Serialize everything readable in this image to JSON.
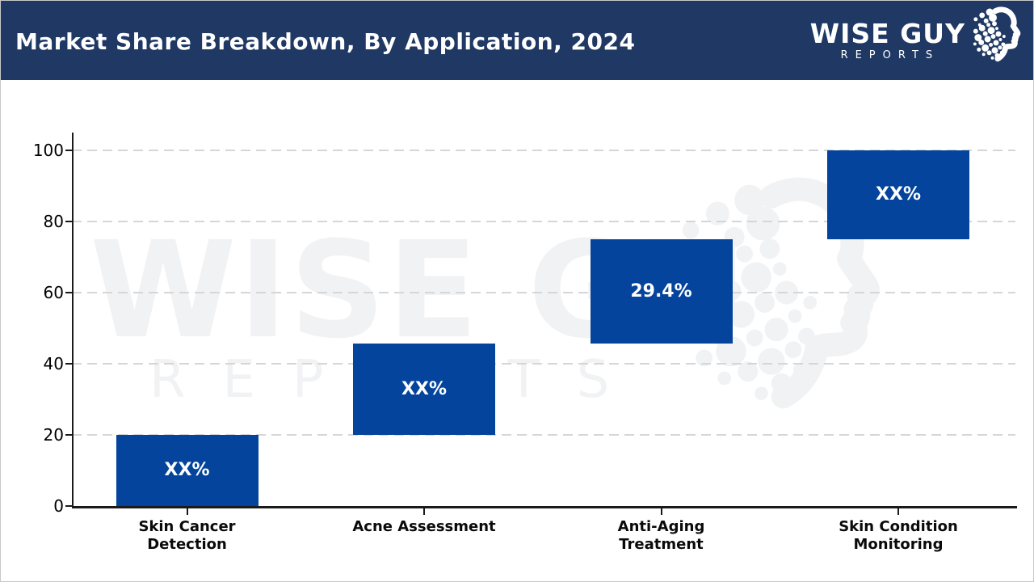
{
  "header": {
    "title": "Market Share Breakdown, By Application, 2024",
    "bg_color": "#1f3864",
    "logo": {
      "name": "WISE GUY",
      "sub": "REPORTS"
    }
  },
  "watermark": {
    "text": "WISE GU",
    "sub": "REPORTS"
  },
  "chart_data": {
    "type": "bar",
    "variant": "waterfall",
    "title": "Market Share Breakdown, By Application, 2024",
    "categories": [
      [
        "Skin Cancer",
        "Detection"
      ],
      [
        "Acne Assessment"
      ],
      [
        "Anti-Aging",
        "Treatment"
      ],
      [
        "Skin Condition",
        "Monitoring"
      ]
    ],
    "series": [
      {
        "name": "Skin Cancer Detection",
        "label": "XX%",
        "start": 0,
        "end": 20
      },
      {
        "name": "Acne Assessment",
        "label": "XX%",
        "start": 20,
        "end": 45.6
      },
      {
        "name": "Anti-Aging Treatment",
        "label": "29.4%",
        "start": 45.6,
        "end": 75
      },
      {
        "name": "Skin Condition Monitoring",
        "label": "XX%",
        "start": 75,
        "end": 100
      }
    ],
    "yticks": [
      0,
      20,
      40,
      60,
      80,
      100
    ],
    "ylim": [
      0,
      104
    ],
    "xlabel": "",
    "ylabel": "",
    "grid": "horizontal-dashed",
    "legend": "none",
    "bar_color": "#04449c",
    "bar_label_color": "#ffffff",
    "grid_color": "#d6d6d6",
    "axis_color": "#1a1a1a"
  }
}
